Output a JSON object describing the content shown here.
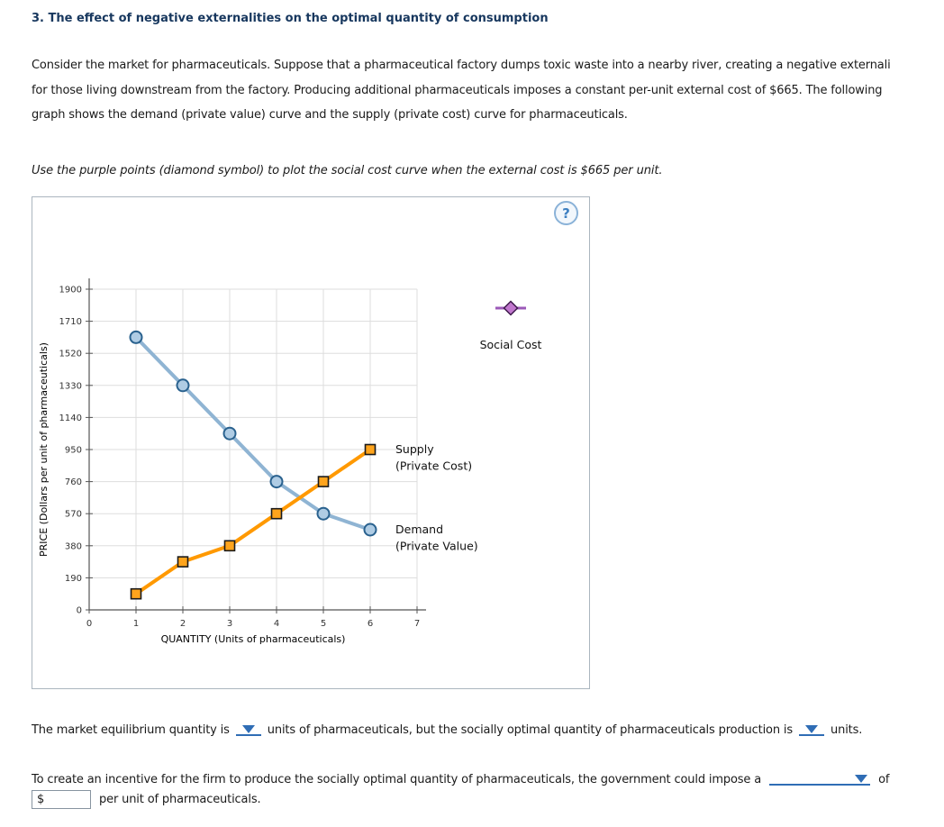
{
  "page": {
    "title": "3. The effect of negative externalities on the optimal quantity of consumption",
    "intro_lines": [
      "Consider the market for pharmaceuticals. Suppose that a pharmaceutical factory dumps toxic waste into a nearby river, creating a negative externali",
      "for those living downstream from the factory. Producing additional pharmaceuticals imposes a constant per-unit external cost of $665. The following",
      "graph shows the demand (private value) curve and the supply (private cost) curve for pharmaceuticals."
    ],
    "instruction": "Use the purple points (diamond symbol) to plot the social cost curve when the external cost is $665 per unit.",
    "help_icon": "?"
  },
  "chart_data": {
    "type": "line",
    "title": "",
    "xlabel": "QUANTITY (Units of pharmaceuticals)",
    "ylabel": "PRICE (Dollars per unit of pharmaceuticals)",
    "xlim": [
      0,
      7
    ],
    "ylim": [
      0,
      1900
    ],
    "x_ticks": [
      0,
      1,
      2,
      3,
      4,
      5,
      6,
      7
    ],
    "y_ticks": [
      0,
      190,
      380,
      570,
      760,
      950,
      1140,
      1330,
      1520,
      1710,
      1900
    ],
    "grid": true,
    "legend_position": "top-right",
    "series": [
      {
        "name": "Demand (Private Value)",
        "label_lines": [
          "Demand",
          "(Private Value)"
        ],
        "marker": "circle",
        "line_color": "#8FB4D3",
        "marker_fill": "#AFCCE4",
        "marker_stroke": "#29618E",
        "x": [
          1,
          2,
          3,
          4,
          5,
          6
        ],
        "y": [
          1615,
          1330,
          1045,
          760,
          570,
          475
        ]
      },
      {
        "name": "Supply (Private Cost)",
        "label_lines": [
          "Supply",
          "(Private Cost)"
        ],
        "marker": "square",
        "line_color": "#FF9900",
        "marker_fill": "#FFA41C",
        "marker_stroke": "#1A1A1A",
        "x": [
          1,
          2,
          3,
          4,
          5,
          6
        ],
        "y": [
          95,
          285,
          380,
          570,
          760,
          950
        ]
      },
      {
        "name": "Social Cost",
        "label_lines": [
          "Social Cost"
        ],
        "marker": "diamond",
        "line_color": "#9C59B8",
        "marker_fill": "#C177CE",
        "marker_stroke": "#3F1A4D",
        "palette": true,
        "x": [],
        "y": []
      }
    ]
  },
  "questions": {
    "q1_before": "The market equilibrium quantity is",
    "q1_middle": "units of pharmaceuticals, but the socially optimal quantity of pharmaceuticals production is",
    "q1_after": "units.",
    "q2_before": "To create an incentive for the firm to produce the socially optimal quantity of pharmaceuticals, the government could impose a",
    "q2_after": "of",
    "q3_prefix": "$",
    "q3_value": "",
    "q3_after": "per unit of pharmaceuticals."
  }
}
